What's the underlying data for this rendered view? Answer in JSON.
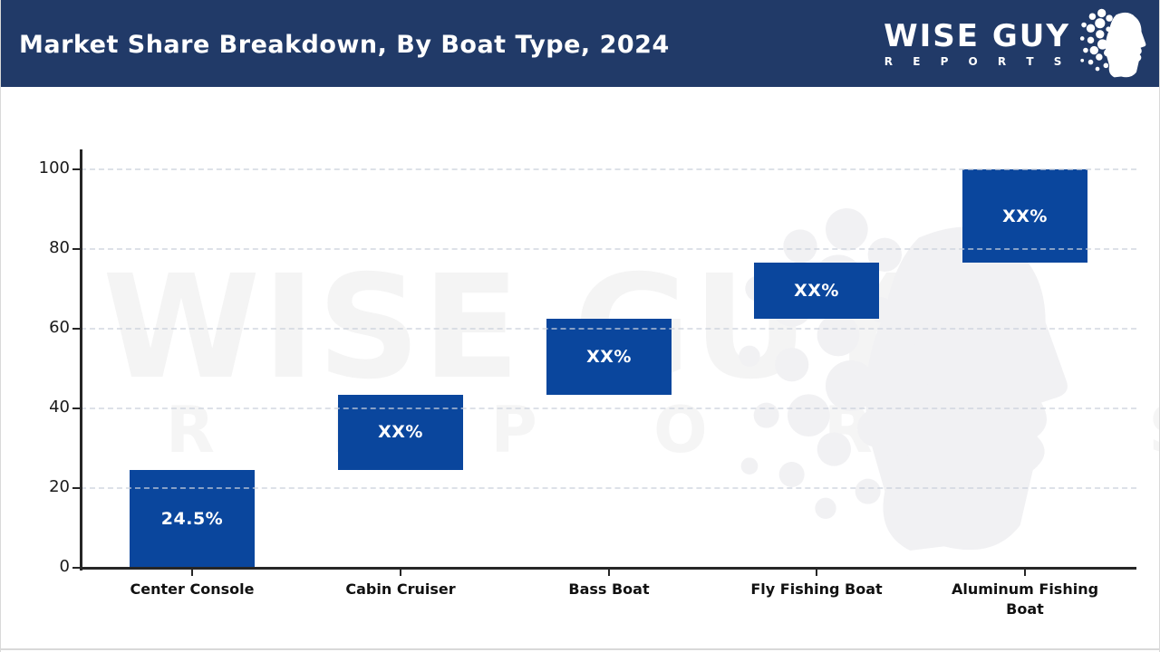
{
  "header": {
    "title": "Market Share Breakdown, By Boat Type, 2024",
    "logo": {
      "wordmark": "WISE GUY",
      "reports": "R E P O R T S"
    }
  },
  "watermark": {
    "wordmark": "WISE GUY",
    "reports": "R E P O R T S"
  },
  "chart_data": {
    "type": "bar",
    "subtype": "waterfall",
    "title": "Market Share Breakdown, By Boat Type, 2024",
    "categories": [
      "Center Console",
      "Cabin Cruiser",
      "Bass Boat",
      "Fly Fishing Boat",
      "Aluminum Fishing Boat"
    ],
    "segments": [
      {
        "category": "Center Console",
        "label": "24.5%",
        "start": 0,
        "end": 24.5
      },
      {
        "category": "Cabin Cruiser",
        "label": "XX%",
        "start": 24.5,
        "end": 43.5
      },
      {
        "category": "Bass Boat",
        "label": "XX%",
        "start": 43.5,
        "end": 62.5
      },
      {
        "category": "Fly Fishing Boat",
        "label": "XX%",
        "start": 62.5,
        "end": 76.5
      },
      {
        "category": "Aluminum Fishing Boat",
        "label": "XX%",
        "start": 76.5,
        "end": 100
      }
    ],
    "ylim": [
      0,
      100
    ],
    "yticks": [
      0,
      20,
      40,
      60,
      80,
      100
    ],
    "grid": true,
    "legend_position": "none",
    "bar_color": "#0a469d",
    "header_color": "#213a68",
    "gridline_color": "#d5d8de"
  }
}
